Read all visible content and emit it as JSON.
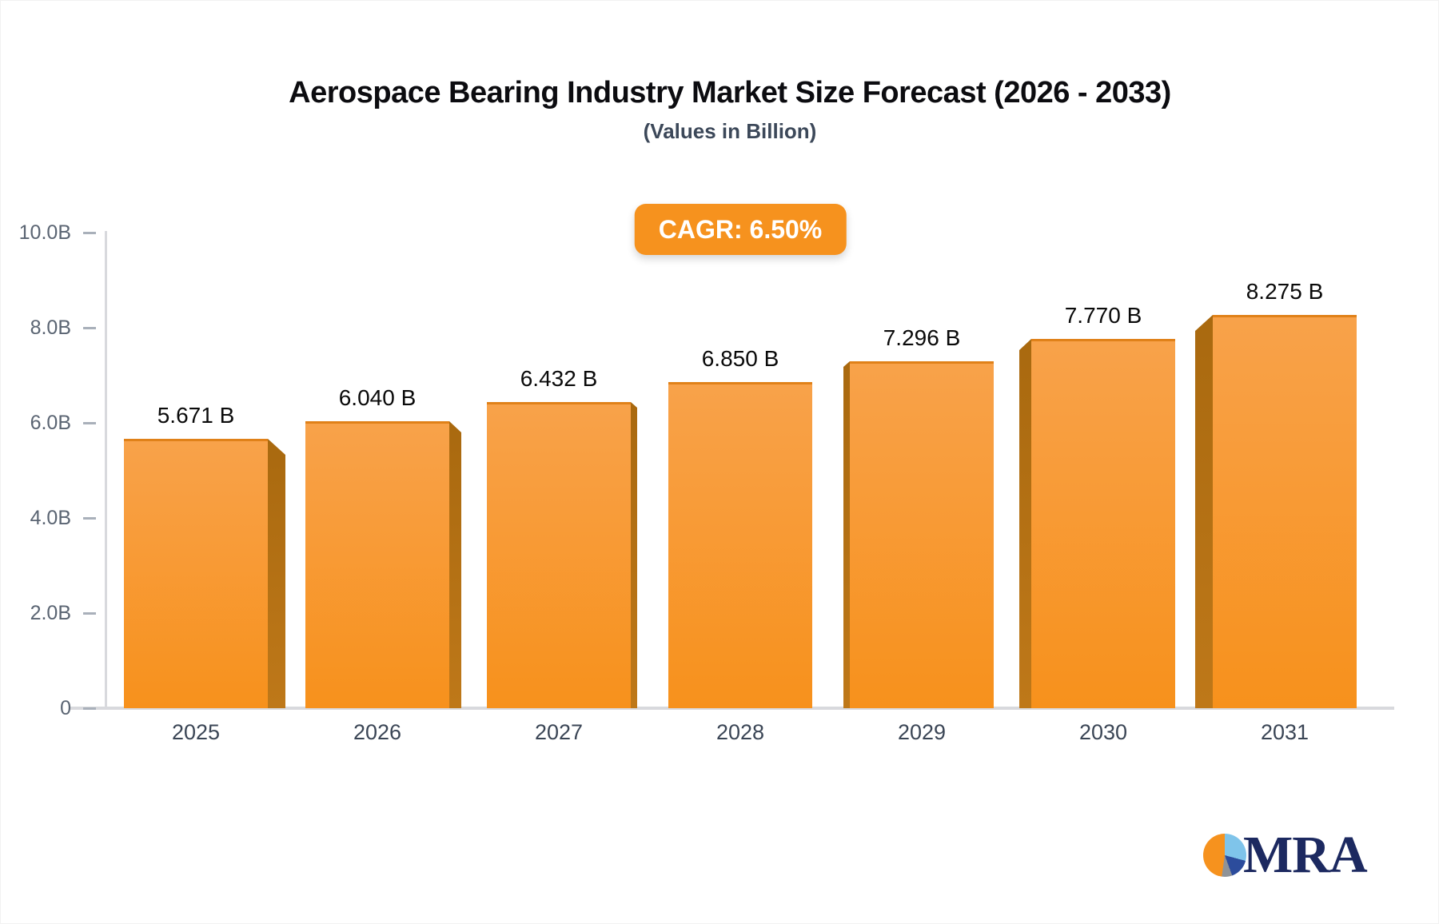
{
  "header": {
    "title": "Aerospace Bearing Industry Market Size Forecast (2026 - 2033)",
    "subtitle": "(Values in Billion)",
    "badge": "CAGR: 6.50%",
    "badge_color": "#F6921E"
  },
  "chart_data": {
    "type": "bar",
    "title": "Aerospace Bearing Industry Market Size Forecast (2026 - 2033)",
    "subtitle": "(Values in Billion)",
    "annotation": "CAGR: 6.50%",
    "categories": [
      "2025",
      "2026",
      "2027",
      "2028",
      "2029",
      "2030",
      "2031"
    ],
    "values": [
      5.671,
      6.04,
      6.432,
      6.85,
      7.296,
      7.77,
      8.275
    ],
    "value_labels": [
      "5.671 B",
      "6.040 B",
      "6.432 B",
      "6.850 B",
      "7.296 B",
      "7.770 B",
      "8.275 B"
    ],
    "y_ticks": [
      {
        "label": "10.0B",
        "value": 10
      },
      {
        "label": "8.0B",
        "value": 8
      },
      {
        "label": "6.0B",
        "value": 6
      },
      {
        "label": "4.0B",
        "value": 4
      },
      {
        "label": "2.0B",
        "value": 2
      },
      {
        "label": "0",
        "value": 0
      }
    ],
    "ylim": [
      0,
      10
    ],
    "xlabel": "",
    "ylabel": "",
    "grid": false,
    "legend": false,
    "bar_style_3d": true,
    "colors": {
      "bar_face_top": "#F8A24A",
      "bar_face_bottom": "#F7911C",
      "bar_top_edge": "#E08119",
      "bar_side_dark": "#A9690F",
      "bar_side_light": "#BE7819",
      "axis_line": "#D8D9DD",
      "tick_dash": "#A9B0BA",
      "y_tick_label": "#5A6472",
      "x_tick_label": "#3A4555",
      "value_label": "#0A0A0A"
    }
  },
  "logo": {
    "text": "MRA",
    "text_color": "#1C2960",
    "pie_colors": {
      "orange": "#F6921E",
      "light_blue": "#7FC4EA",
      "dark_blue": "#2C4C9C",
      "gray": "#8F9398"
    }
  }
}
